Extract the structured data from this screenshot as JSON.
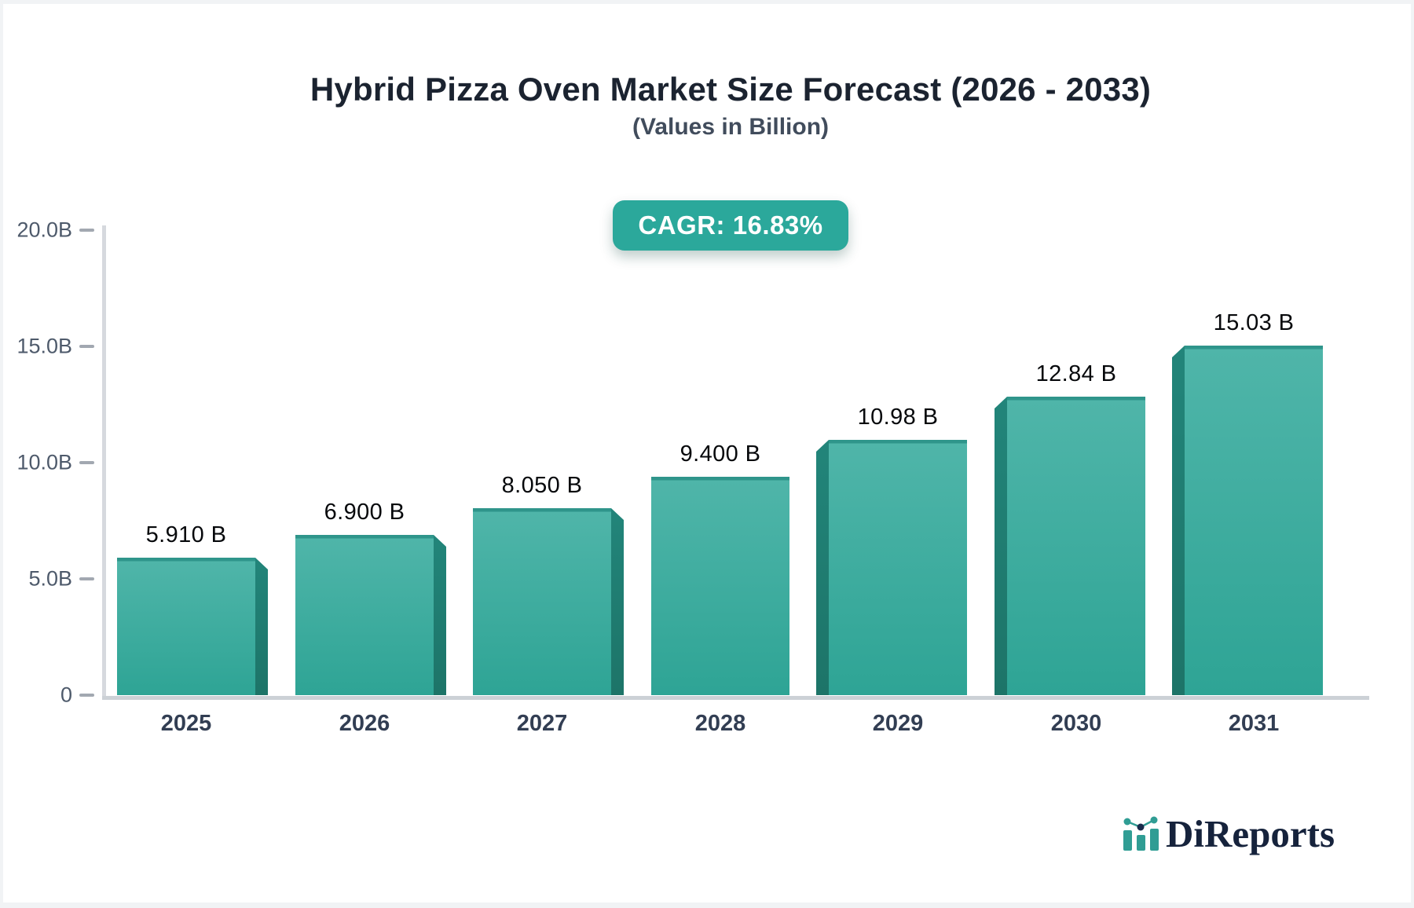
{
  "title": "Hybrid Pizza Oven Market Size Forecast (2026 - 2033)",
  "subtitle": "(Values in Billion)",
  "cagr_badge": "CAGR: 16.83%",
  "colors": {
    "badge": "#2BA89B",
    "bar_top": "#4FB5A9",
    "bar_bottom": "#2EA495",
    "bar_edge": "#2F958B",
    "bar_side": "#1F7D71",
    "axis_line": "#D6D9DE",
    "title_text": "#1B2330",
    "logo_navy": "#16233C",
    "logo_teal": "#309D94"
  },
  "chart_data": {
    "type": "bar",
    "categories": [
      "2025",
      "2026",
      "2027",
      "2028",
      "2029",
      "2030",
      "2031"
    ],
    "values": [
      5.91,
      6.9,
      8.05,
      9.4,
      10.98,
      12.84,
      15.03
    ],
    "bar_labels": [
      "5.910 B",
      "6.900 B",
      "8.050 B",
      "9.400 B",
      "10.98 B",
      "12.84 B",
      "15.03 B"
    ],
    "title": "Hybrid Pizza Oven Market Size Forecast (2026 - 2033)",
    "subtitle": "(Values in Billion)",
    "xlabel": "",
    "ylabel": "",
    "ylim": [
      0,
      20
    ],
    "yticks": [
      {
        "label": "20.0B",
        "value": 20
      },
      {
        "label": "15.0B",
        "value": 15
      },
      {
        "label": "10.0B",
        "value": 10
      },
      {
        "label": "5.0B",
        "value": 5
      },
      {
        "label": "0",
        "value": 0
      }
    ],
    "grid": false,
    "legend": false,
    "annotation": "CAGR: 16.83%"
  },
  "logo": {
    "text": "DiReports",
    "icon": "mini-bar-chart-logo-icon"
  }
}
